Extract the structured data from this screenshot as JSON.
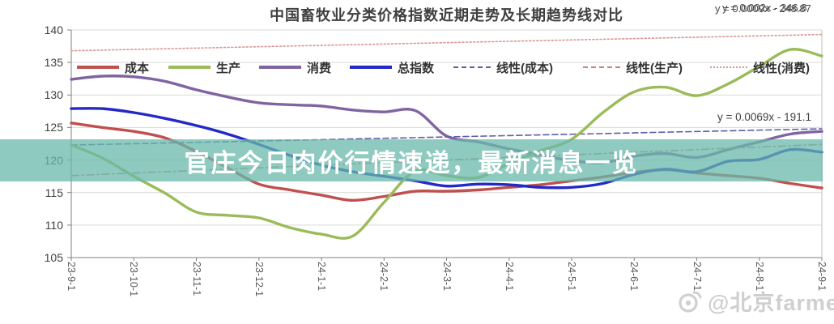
{
  "title": "中国畜牧业分类价格指数近期走势及长期趋势线对比",
  "banner": {
    "text": "官庄今日肉价行情速递，最新消息一览"
  },
  "watermark": {
    "text": "@北京farmer",
    "icon": "weibo-eye-icon"
  },
  "equations": {
    "overlap_1": "y = 0.0009x - 248.87",
    "overlap_2": "y = 0.002x - 346.8",
    "trend_annotation": "y = 0.0069x - 191.1"
  },
  "colors": {
    "grid": "#D9D9D9",
    "axis": "#808080",
    "plot_border_right": "#BFBFBF",
    "banner_bg": "#68B8AA",
    "banner_text": "#FFFFFF",
    "watermark": "#CFCFCF"
  },
  "chart_data": {
    "type": "line",
    "title": "中国畜牧业分类价格指数近期走势及长期趋势线对比",
    "x_labels": [
      "23-9-1",
      "23-10-1",
      "23-11-1",
      "23-12-1",
      "24-1-1",
      "24-2-1",
      "24-3-1",
      "24-4-1",
      "24-5-1",
      "24-6-1",
      "24-7-1",
      "24-8-1",
      "24-9-1"
    ],
    "x_points_per_label": 2,
    "ylim": [
      105,
      140
    ],
    "y_ticks": [
      105,
      110,
      115,
      120,
      125,
      130,
      135,
      140
    ],
    "grid": "horizontal",
    "legend_position": "top-inside-row",
    "series": [
      {
        "name": "成本",
        "color": "#C0504D",
        "style": "solid",
        "values": [
          125.7,
          125.0,
          124.4,
          123.4,
          121.3,
          118.8,
          116.3,
          115.4,
          114.6,
          113.8,
          114.4,
          115.2,
          115.2,
          115.4,
          115.8,
          116.2,
          116.8,
          117.4,
          118.1,
          118.5,
          118.0,
          117.6,
          117.2,
          116.4,
          115.7
        ]
      },
      {
        "name": "生产",
        "color": "#9BBB59",
        "style": "solid",
        "values": [
          122.3,
          120.3,
          117.5,
          114.9,
          112.0,
          111.5,
          111.1,
          109.6,
          108.6,
          108.3,
          113.5,
          118.3,
          117.6,
          117.3,
          119.5,
          121.4,
          123.2,
          127.3,
          130.5,
          131.2,
          129.9,
          131.7,
          134.4,
          137.0,
          136.0
        ]
      },
      {
        "name": "消费",
        "color": "#8064A2",
        "style": "solid",
        "values": [
          132.4,
          132.9,
          132.8,
          132.1,
          130.8,
          129.7,
          128.8,
          128.5,
          128.3,
          127.7,
          127.4,
          127.6,
          123.7,
          122.8,
          121.7,
          120.8,
          119.9,
          119.6,
          120.6,
          121.0,
          120.4,
          121.6,
          122.8,
          124.0,
          124.4
        ]
      },
      {
        "name": "总指数",
        "color": "#2328C8",
        "style": "solid",
        "values": [
          127.9,
          127.9,
          127.3,
          126.4,
          125.3,
          124.0,
          122.4,
          120.7,
          119.2,
          118.2,
          117.5,
          116.8,
          116.0,
          116.3,
          116.2,
          115.8,
          115.8,
          116.4,
          117.8,
          118.6,
          118.2,
          119.8,
          120.1,
          121.6,
          121.2
        ]
      },
      {
        "name": "线性(成本)",
        "color": "#5E5EA8",
        "style": "dashed",
        "values": [
          122.3,
          124.8
        ]
      },
      {
        "name": "线性(生产)",
        "color": "#C9837E",
        "style": "dashdot",
        "values": [
          117.6,
          122.4
        ]
      },
      {
        "name": "线性(消费)",
        "color": "#D99694",
        "style": "dotted",
        "values": [
          136.8,
          139.3
        ]
      }
    ]
  }
}
